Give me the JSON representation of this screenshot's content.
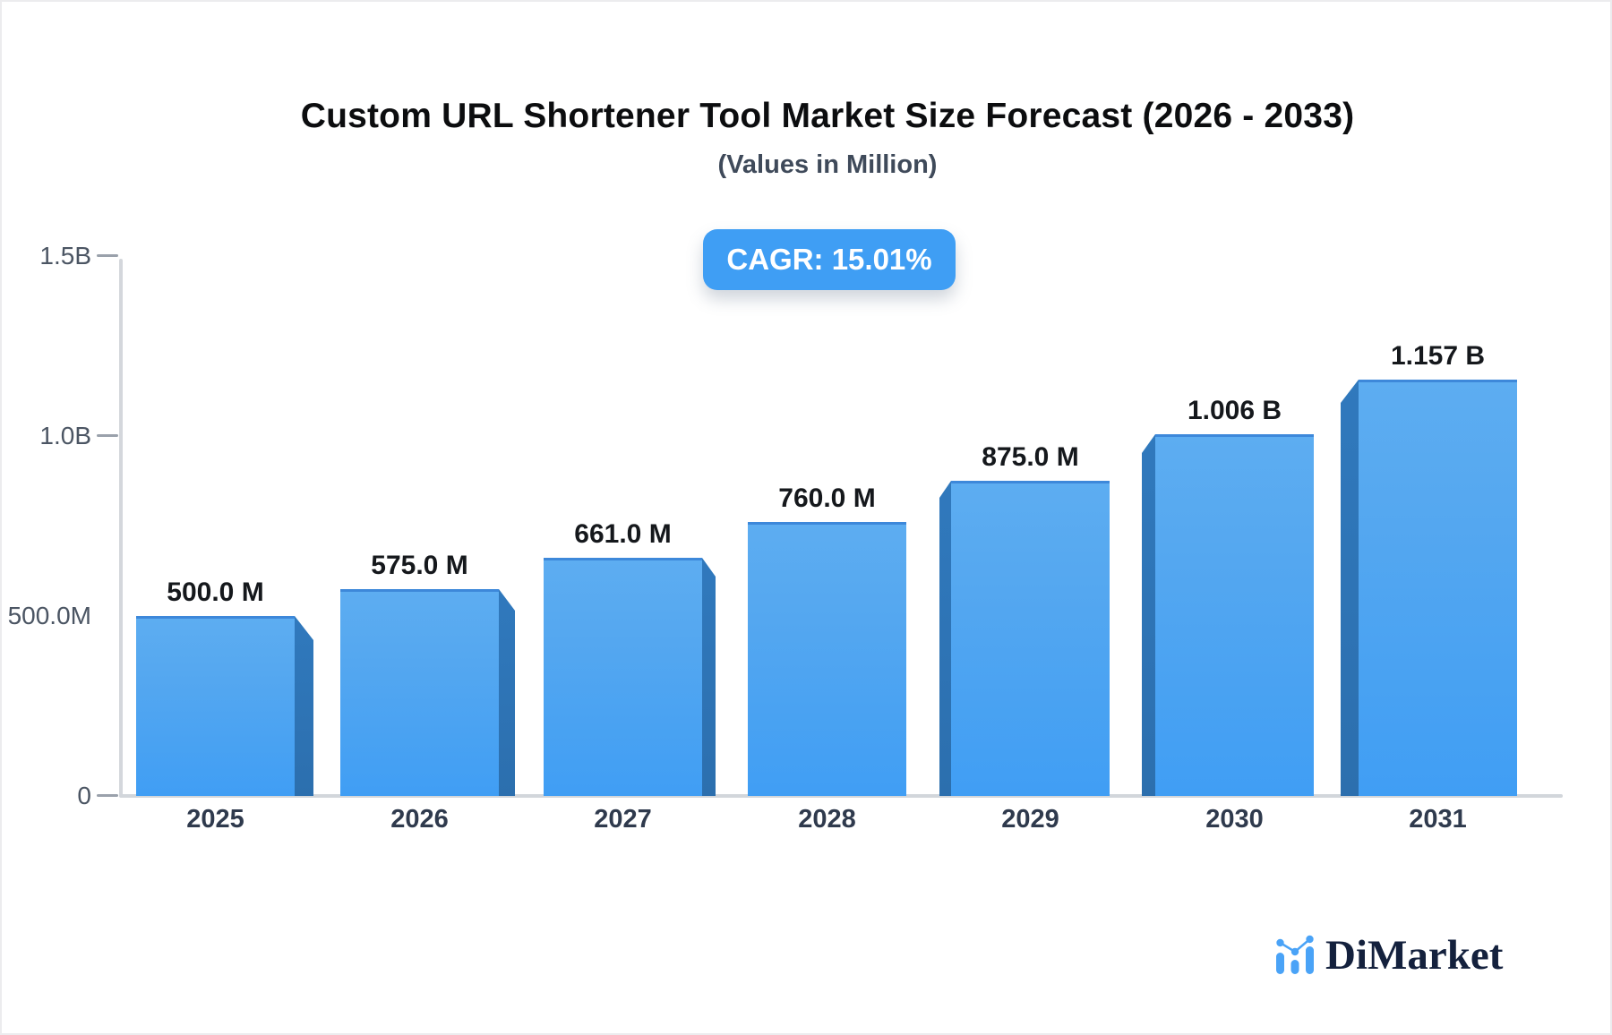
{
  "header": {
    "title": "Custom URL Shortener Tool Market Size Forecast (2026 - 2033)",
    "subtitle": "(Values in Million)"
  },
  "badge": {
    "label": "CAGR: 15.01%"
  },
  "y_axis": {
    "tick_labels": [
      "1.5B",
      "1.0B",
      "500.0M",
      "0"
    ]
  },
  "chart_data": {
    "type": "bar",
    "title": "Custom URL Shortener Tool Market Size Forecast (2026 - 2033)",
    "subtitle": "(Values in Million)",
    "annotation": "CAGR: 15.01%",
    "categories": [
      "2025",
      "2026",
      "2027",
      "2028",
      "2029",
      "2030",
      "2031"
    ],
    "values": [
      500.0,
      575.0,
      661.0,
      760.0,
      875.0,
      1006.0,
      1157.0
    ],
    "unit": "Million",
    "value_labels": [
      "500.0 M",
      "575.0 M",
      "661.0 M",
      "760.0 M",
      "875.0 M",
      "1.006 B",
      "1.157 B"
    ],
    "xlabel": "",
    "ylabel": "",
    "ylim_millions": [
      0,
      1500
    ],
    "y_tick_labels": [
      "0",
      "500.0M",
      "1.0B",
      "1.5B"
    ],
    "grid": false,
    "legend": false,
    "bar_color": "#459ff2",
    "bar_side_color": "#2e76b8",
    "style": "3d-beveled-bars"
  },
  "logo": {
    "text": "DiMarket",
    "icon": "bar-chart-trend-icon",
    "icon_color": "#4aa3f7"
  }
}
